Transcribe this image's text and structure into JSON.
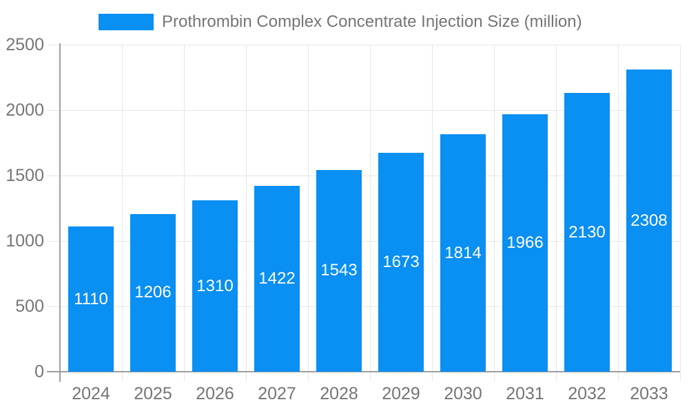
{
  "chart_data": {
    "type": "bar",
    "title": "Prothrombin Complex Concentrate Injection Size (million)",
    "categories": [
      "2024",
      "2025",
      "2026",
      "2027",
      "2028",
      "2029",
      "2030",
      "2031",
      "2032",
      "2033"
    ],
    "values": [
      1110,
      1206,
      1310,
      1422,
      1543,
      1673,
      1814,
      1966,
      2130,
      2308
    ],
    "xlabel": "",
    "ylabel": "",
    "ylim": [
      0,
      2500
    ],
    "yticks": [
      0,
      500,
      1000,
      1500,
      2000,
      2500
    ],
    "grid": true,
    "legend_position": "top",
    "value_labels": "inside-center",
    "bar_color": "#0a8ff2",
    "bar_label_color": "#ffffff",
    "axis_text_color": "#757575",
    "gridline_color": "#e6e6e6",
    "axis_line_color": "#9e9e9e",
    "background_color": "#ffffff"
  }
}
